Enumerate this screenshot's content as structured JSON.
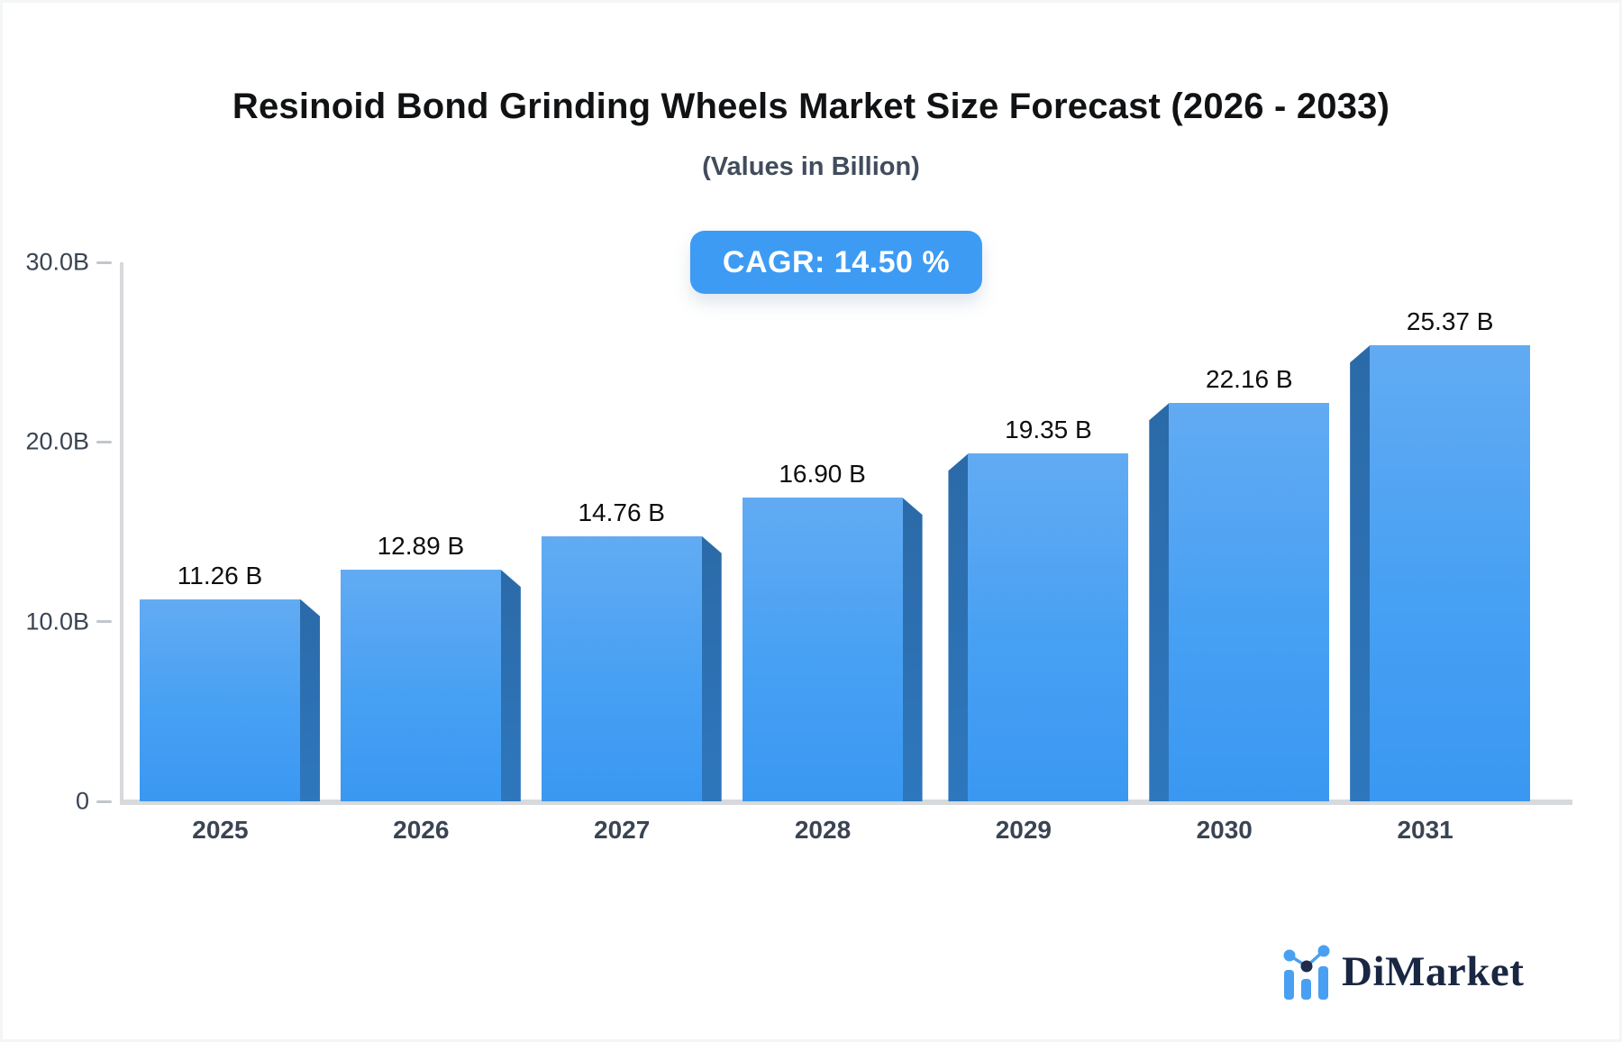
{
  "chart_data": {
    "type": "bar",
    "title": "Resinoid Bond Grinding Wheels Market Size Forecast (2026 - 2033)",
    "subtitle": "(Values in Billion)",
    "annotation": "CAGR: 14.50 %",
    "categories": [
      "2025",
      "2026",
      "2027",
      "2028",
      "2029",
      "2030",
      "2031"
    ],
    "values": [
      11.26,
      12.89,
      14.76,
      16.9,
      19.35,
      22.16,
      25.37
    ],
    "value_labels": [
      "11.26 B",
      "12.89 B",
      "14.76 B",
      "16.90 B",
      "19.35 B",
      "22.16 B",
      "25.37 B"
    ],
    "xlabel": "",
    "ylabel": "",
    "ylim": [
      0,
      30
    ],
    "yticks": [
      {
        "value": 0,
        "label": "0"
      },
      {
        "value": 10,
        "label": "10.0B"
      },
      {
        "value": 20,
        "label": "20.0B"
      },
      {
        "value": 30,
        "label": "30.0B"
      }
    ],
    "grid": false,
    "legend": false,
    "bar_style": "3d"
  },
  "brand": {
    "name": "DiMarket",
    "icon": "bar-chart-logo-icon"
  },
  "colors": {
    "bar_front_top": "#62abf3",
    "bar_front_mid": "#47a0f3",
    "bar_front_bottom": "#3a98f2",
    "bar_side_top": "#2b6aa8",
    "bar_side_bottom": "#2e77bd",
    "badge_bg": "#3d9bf4",
    "axis_line": "#d7d9dc",
    "tick": "#c2c6cc",
    "axis_label": "#3a4452",
    "value_label": "#0d0e10",
    "title": "#101214",
    "subtitle": "#414c5c",
    "logo_navy": "#1a2742",
    "logo_blue": "#49a0f2"
  }
}
